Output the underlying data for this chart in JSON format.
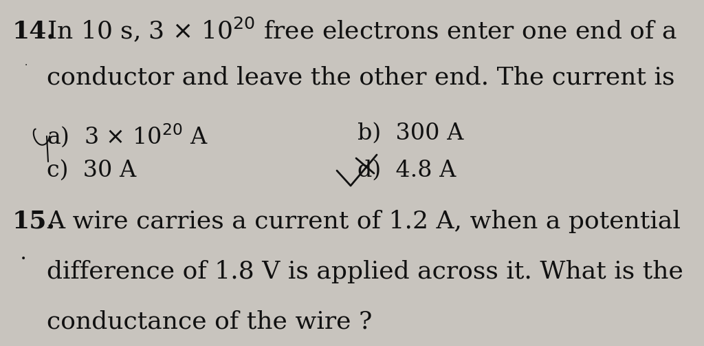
{
  "background_color": "#c8c4be",
  "text_color": "#111111",
  "q14_num": "14.",
  "q14_dot": "·",
  "q14_l1": "In 10 s, 3 × 10$^{20}$ free electrons enter one end of a",
  "q14_l2": "conductor and leave the other end. The current is",
  "q14_oa": "a)  3 × 10$^{20}$ A",
  "q14_ob": "b)  300 A",
  "q14_oc": "c)  30 A",
  "q14_od": "d)  4.8 A",
  "q15_num": "15.",
  "q15_dot": "•",
  "q15_l1": "A wire carries a current of 1.2 A, when a potential",
  "q15_l2": "difference of 1.8 V is applied across it. What is the",
  "q15_l3": "conductance of the wire ?",
  "fs_large": 26,
  "fs_num": 26,
  "fs_opt": 24,
  "fs_dot": 10
}
